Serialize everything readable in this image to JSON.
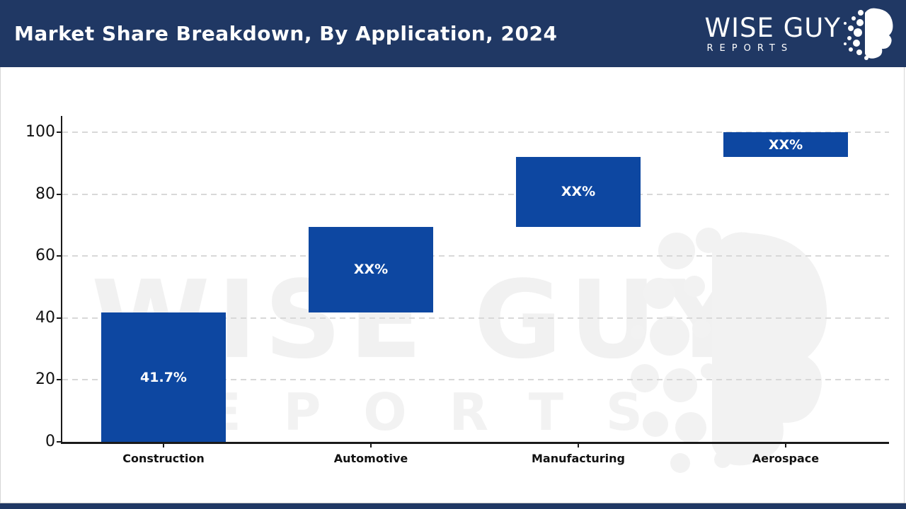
{
  "header": {
    "title": "Market Share Breakdown, By Application, 2024",
    "logo": {
      "line1": "WISE GUY",
      "line2": "REPORTS"
    }
  },
  "watermark": {
    "line1": "WISE GUY",
    "line2": "REPORTS"
  },
  "chart_data": {
    "type": "waterfall",
    "title": "Market Share Breakdown, By Application, 2024",
    "categories": [
      "Construction",
      "Automotive",
      "Manufacturing",
      "Aerospace"
    ],
    "segments": [
      {
        "category": "Construction",
        "start": 0,
        "end": 41.7,
        "label": "41.7%"
      },
      {
        "category": "Automotive",
        "start": 41.7,
        "end": 69.5,
        "label": "XX%"
      },
      {
        "category": "Manufacturing",
        "start": 69.5,
        "end": 92.0,
        "label": "XX%"
      },
      {
        "category": "Aerospace",
        "start": 92.0,
        "end": 100,
        "label": "XX%"
      }
    ],
    "yticks": [
      0,
      20,
      40,
      60,
      80,
      100
    ],
    "ylim": [
      0,
      105
    ],
    "grid": "horizontal-dashed",
    "legend": "none",
    "colors": {
      "bar": "#0d47a1",
      "bar_label": "#ffffff",
      "header_bg": "#203864",
      "grid_line": "#d8d8d8",
      "axis": "#1a1a1a",
      "watermark": "#f1f1f1"
    }
  }
}
